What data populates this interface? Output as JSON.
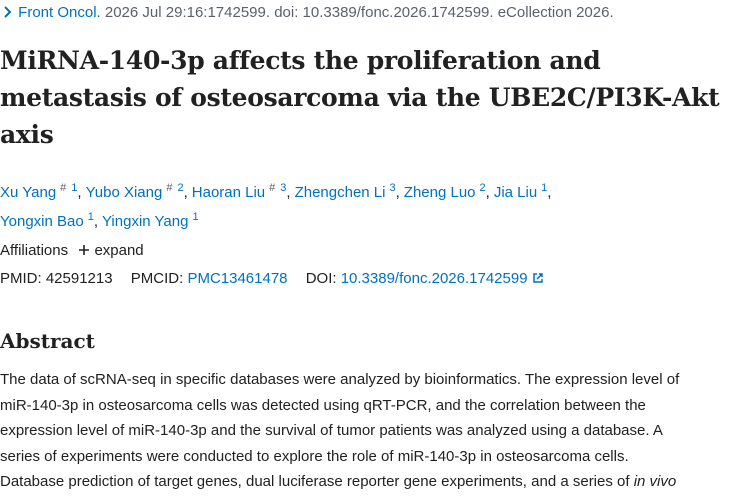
{
  "citation": {
    "journal": "Front Oncol.",
    "details": "2026 Jul 29:16:1742599. doi: 10.3389/fonc.2026.1742599. eCollection 2026."
  },
  "title_lines": [
    "MiRNA-140-3p affects the proliferation and",
    "metastasis of osteosarcoma via the UBE2C/PI3K-Akt",
    "axis"
  ],
  "authors": [
    {
      "name": "Xu Yang",
      "equal": "#",
      "aff": "1"
    },
    {
      "name": "Yubo Xiang",
      "equal": "#",
      "aff": "2"
    },
    {
      "name": "Haoran Liu",
      "equal": "#",
      "aff": "3"
    },
    {
      "name": "Zhengchen Li",
      "aff": "3"
    },
    {
      "name": "Zheng Luo",
      "aff": "2"
    },
    {
      "name": "Jia Liu",
      "aff": "1"
    },
    {
      "name": "Yongxin Bao",
      "aff": "1"
    },
    {
      "name": "Yingxin Yang",
      "aff": "1"
    }
  ],
  "affiliations": {
    "label": "Affiliations",
    "toggle": "expand"
  },
  "identifiers": {
    "pmid_label": "PMID:",
    "pmid": "42591213",
    "pmcid_label": "PMCID:",
    "pmcid": "PMC13461478",
    "doi_label": "DOI:",
    "doi": "10.3389/fonc.2026.1742599"
  },
  "abstract": {
    "heading": "Abstract",
    "lines": [
      "The data of scRNA-seq in specific databases were analyzed by bioinformatics. The expression level of",
      "miR-140-3p in osteosarcoma cells was detected using qRT-PCR, and the correlation between the",
      "expression level of miR-140-3p and the survival of tumor patients was analyzed using a database. A",
      "series of experiments were conducted to explore the role of miR-140-3p in osteosarcoma cells."
    ],
    "last_line": {
      "text": "Database prediction of target genes, dual luciferase reporter gene experiments, and a series of",
      "italic": "in vivo"
    }
  }
}
